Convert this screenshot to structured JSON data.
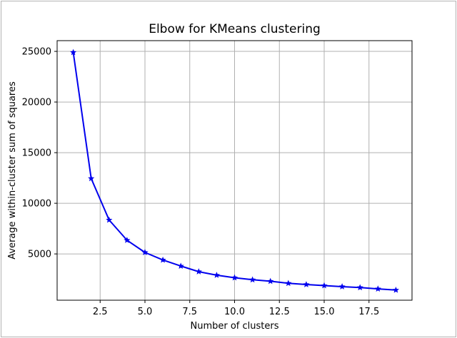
{
  "figure": {
    "background": "#ffffff",
    "border_color": "#b3b3b3"
  },
  "chart_data": {
    "type": "line",
    "title": "Elbow for KMeans clustering",
    "xlabel": "Number of clusters",
    "ylabel": "Average within-cluster sum of squares",
    "x": [
      1,
      2,
      3,
      4,
      5,
      6,
      7,
      8,
      9,
      10,
      11,
      12,
      13,
      14,
      15,
      16,
      17,
      18,
      19
    ],
    "y": [
      24900,
      12450,
      8350,
      6350,
      5150,
      4400,
      3800,
      3250,
      2900,
      2650,
      2450,
      2300,
      2100,
      1980,
      1870,
      1770,
      1680,
      1550,
      1430
    ],
    "xlim": [
      0.1,
      19.9
    ],
    "ylim": [
      430,
      26060
    ],
    "xticks": [
      2.5,
      5.0,
      7.5,
      10.0,
      12.5,
      15.0,
      17.5
    ],
    "xtick_labels": [
      "2.5",
      "5.0",
      "7.5",
      "10.0",
      "12.5",
      "15.0",
      "17.5"
    ],
    "yticks": [
      5000,
      10000,
      15000,
      20000,
      25000
    ],
    "ytick_labels": [
      "5000",
      "10000",
      "15000",
      "20000",
      "25000"
    ],
    "grid": true,
    "legend": null,
    "line_color": "#0000ee",
    "marker": "star",
    "grid_color": "#b0b0b0",
    "spine_color": "#000000",
    "tick_color": "#000000"
  }
}
